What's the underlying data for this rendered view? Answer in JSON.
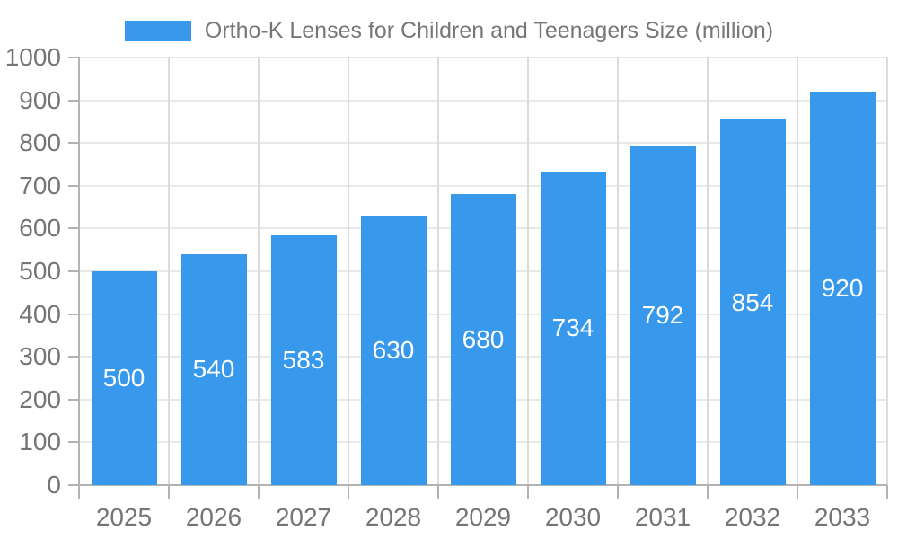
{
  "chart_data": {
    "type": "bar",
    "legend": "Ortho-K Lenses for Children and Teenagers Size (million)",
    "categories": [
      "2025",
      "2026",
      "2027",
      "2028",
      "2029",
      "2030",
      "2031",
      "2032",
      "2033"
    ],
    "values": [
      500,
      540,
      583,
      630,
      680,
      734,
      792,
      854,
      920
    ],
    "value_labels": [
      "500",
      "540",
      "583",
      "630",
      "680",
      "734",
      "792",
      "854",
      "920"
    ],
    "xlabel": "",
    "ylabel": "",
    "ylim": [
      0,
      1000
    ],
    "ytick_step": 100,
    "yticks": [
      "0",
      "100",
      "200",
      "300",
      "400",
      "500",
      "600",
      "700",
      "800",
      "900",
      "1000"
    ],
    "grid": true,
    "legend_position": "top-center",
    "colors": {
      "bar": "#3899EC",
      "grid_horizontal": "#E9E9E9",
      "grid_vertical": "#DCDCDC",
      "axis": "#B3B3B3",
      "tick_label": "#757575",
      "legend_text": "#777777",
      "bar_value_text": "#FFFFFF",
      "background": "#FFFFFF"
    }
  }
}
